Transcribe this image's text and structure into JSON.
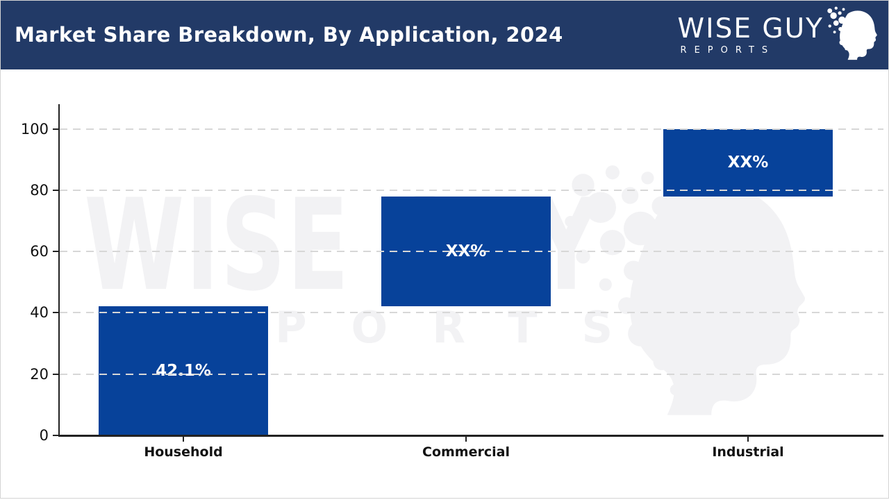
{
  "header": {
    "title": "Market Share Breakdown, By Application, 2024",
    "logo": {
      "wordmark": "WISE GUY",
      "reports": "REPORTS"
    }
  },
  "watermark": {
    "wordmark": "WISE GUY",
    "reports": "REPORTS"
  },
  "chart_data": {
    "type": "bar",
    "variant": "floating-segment-waterfall",
    "title": "Market Share Breakdown, By Application, 2024",
    "categories": [
      "Household",
      "Commercial",
      "Industrial"
    ],
    "bars": [
      {
        "category": "Household",
        "start": 0,
        "end": 42.1,
        "label": "42.1%"
      },
      {
        "category": "Commercial",
        "start": 42.1,
        "end": 78,
        "label": "XX%"
      },
      {
        "category": "Industrial",
        "start": 78,
        "end": 100,
        "label": "XX%"
      }
    ],
    "xlabel": "",
    "ylabel": "",
    "yticks": [
      0,
      20,
      40,
      60,
      80,
      100
    ],
    "ylim": [
      0,
      108
    ],
    "grid": "horizontal-dashed",
    "legend": "none",
    "colors": {
      "bar": "#07429A",
      "bar_label": "#ffffff",
      "grid": "#d7d7d7",
      "axis": "#222222",
      "tick_label": "#111111",
      "header_bg": "#223A67",
      "header_text": "#ffffff",
      "watermark": "#f2f2f4"
    }
  }
}
